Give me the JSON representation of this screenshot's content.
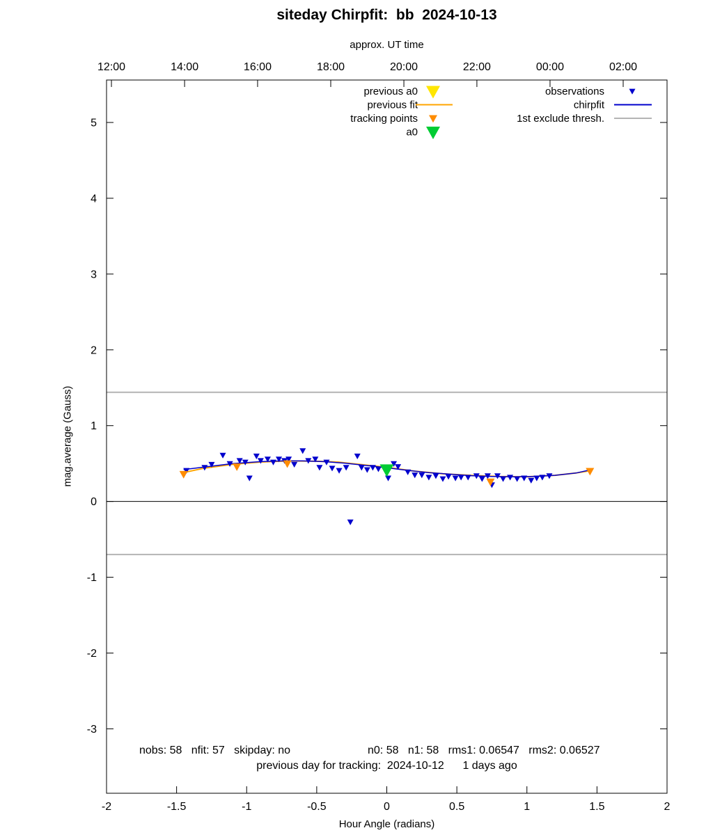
{
  "chart_data": {
    "type": "scatter",
    "title": "siteday Chirpfit:  bb  2024-10-13",
    "x2label": "approx. UT time",
    "xlabel": "Hour Angle (radians)",
    "ylabel": "mag.average (Gauss)",
    "xlim": [
      -2,
      2
    ],
    "ylim": [
      -3.85,
      5.56
    ],
    "grid": false,
    "legend_position": "top-inside",
    "x_ticks": [
      {
        "x": -2,
        "label": "-2"
      },
      {
        "x": -1.5,
        "label": "-1.5"
      },
      {
        "x": -1,
        "label": "-1"
      },
      {
        "x": -0.5,
        "label": "-0.5"
      },
      {
        "x": 0,
        "label": "0"
      },
      {
        "x": 0.5,
        "label": "0.5"
      },
      {
        "x": 1,
        "label": "1"
      },
      {
        "x": 1.5,
        "label": "1.5"
      },
      {
        "x": 2,
        "label": "2"
      }
    ],
    "y_ticks": [
      {
        "y": -3,
        "label": "-3"
      },
      {
        "y": -2,
        "label": "-2"
      },
      {
        "y": -1,
        "label": "-1"
      },
      {
        "y": 0,
        "label": "0"
      },
      {
        "y": 1,
        "label": "1"
      },
      {
        "y": 2,
        "label": "2"
      },
      {
        "y": 3,
        "label": "3"
      },
      {
        "y": 4,
        "label": "4"
      },
      {
        "y": 5,
        "label": "5"
      }
    ],
    "x2_ticks": [
      {
        "x": -1.965,
        "label": "12:00"
      },
      {
        "x": -1.443,
        "label": "14:00"
      },
      {
        "x": -0.922,
        "label": "16:00"
      },
      {
        "x": -0.4,
        "label": "18:00"
      },
      {
        "x": 0.122,
        "label": "20:00"
      },
      {
        "x": 0.643,
        "label": "22:00"
      },
      {
        "x": 1.165,
        "label": "00:00"
      },
      {
        "x": 1.687,
        "label": "02:00"
      }
    ],
    "hlines": [
      {
        "name": "exclude-threshold-upper",
        "y": 1.44,
        "color": "#b4b4b4",
        "width": 2
      },
      {
        "name": "exclude-threshold-lower",
        "y": -0.7,
        "color": "#b4b4b4",
        "width": 2
      },
      {
        "name": "zero-line",
        "y": 0,
        "color": "#000000",
        "width": 1
      }
    ],
    "series": [
      {
        "name": "previous fit",
        "type": "line",
        "color": "#ffa500",
        "width": 2,
        "points": [
          [
            -1.45,
            0.38
          ],
          [
            -1.3,
            0.44
          ],
          [
            -1.1,
            0.49
          ],
          [
            -0.9,
            0.52
          ],
          [
            -0.7,
            0.535
          ],
          [
            -0.5,
            0.53
          ],
          [
            -0.35,
            0.52
          ],
          [
            -0.2,
            0.49
          ],
          [
            0.0,
            0.45
          ],
          [
            0.2,
            0.4
          ],
          [
            0.4,
            0.365
          ],
          [
            0.6,
            0.345
          ],
          [
            0.8,
            0.33
          ],
          [
            1.0,
            0.325
          ],
          [
            1.2,
            0.345
          ],
          [
            1.35,
            0.375
          ],
          [
            1.45,
            0.405
          ]
        ]
      },
      {
        "name": "chirpfit",
        "type": "line",
        "color": "#0000cd",
        "width": 1.5,
        "points": [
          [
            -1.45,
            0.42
          ],
          [
            -1.3,
            0.455
          ],
          [
            -1.1,
            0.5
          ],
          [
            -0.9,
            0.525
          ],
          [
            -0.75,
            0.535
          ],
          [
            -0.6,
            0.535
          ],
          [
            -0.45,
            0.525
          ],
          [
            -0.3,
            0.505
          ],
          [
            -0.15,
            0.475
          ],
          [
            0.0,
            0.445
          ],
          [
            0.15,
            0.41
          ],
          [
            0.3,
            0.38
          ],
          [
            0.45,
            0.36
          ],
          [
            0.6,
            0.34
          ],
          [
            0.75,
            0.33
          ],
          [
            0.9,
            0.325
          ],
          [
            1.05,
            0.33
          ],
          [
            1.2,
            0.345
          ],
          [
            1.35,
            0.375
          ],
          [
            1.45,
            0.415
          ]
        ]
      },
      {
        "name": "observations",
        "type": "scatter",
        "marker": "triangle-down",
        "color": "#0000cd",
        "marker_size": 4.5,
        "points": [
          [
            -1.43,
            0.41
          ],
          [
            -1.3,
            0.45
          ],
          [
            -1.25,
            0.49
          ],
          [
            -1.17,
            0.61
          ],
          [
            -1.12,
            0.5
          ],
          [
            -1.05,
            0.54
          ],
          [
            -1.01,
            0.52
          ],
          [
            -0.98,
            0.31
          ],
          [
            -0.93,
            0.6
          ],
          [
            -0.9,
            0.54
          ],
          [
            -0.85,
            0.56
          ],
          [
            -0.81,
            0.52
          ],
          [
            -0.77,
            0.56
          ],
          [
            -0.73,
            0.54
          ],
          [
            -0.7,
            0.56
          ],
          [
            -0.66,
            0.49
          ],
          [
            -0.6,
            0.67
          ],
          [
            -0.56,
            0.54
          ],
          [
            -0.51,
            0.56
          ],
          [
            -0.48,
            0.45
          ],
          [
            -0.43,
            0.52
          ],
          [
            -0.39,
            0.44
          ],
          [
            -0.34,
            0.41
          ],
          [
            -0.29,
            0.45
          ],
          [
            -0.26,
            -0.27
          ],
          [
            -0.21,
            0.6
          ],
          [
            -0.18,
            0.45
          ],
          [
            -0.14,
            0.42
          ],
          [
            -0.1,
            0.45
          ],
          [
            -0.06,
            0.43
          ],
          [
            -0.02,
            0.44
          ],
          [
            0.01,
            0.31
          ],
          [
            0.05,
            0.5
          ],
          [
            0.08,
            0.46
          ],
          [
            0.15,
            0.39
          ],
          [
            0.2,
            0.35
          ],
          [
            0.25,
            0.35
          ],
          [
            0.3,
            0.32
          ],
          [
            0.35,
            0.34
          ],
          [
            0.4,
            0.3
          ],
          [
            0.44,
            0.33
          ],
          [
            0.49,
            0.31
          ],
          [
            0.53,
            0.32
          ],
          [
            0.58,
            0.32
          ],
          [
            0.64,
            0.34
          ],
          [
            0.68,
            0.3
          ],
          [
            0.72,
            0.34
          ],
          [
            0.75,
            0.22
          ],
          [
            0.79,
            0.34
          ],
          [
            0.83,
            0.3
          ],
          [
            0.88,
            0.32
          ],
          [
            0.93,
            0.3
          ],
          [
            0.98,
            0.31
          ],
          [
            1.03,
            0.28
          ],
          [
            1.07,
            0.31
          ],
          [
            1.11,
            0.32
          ],
          [
            1.16,
            0.34
          ],
          [
            1.45,
            0.41
          ]
        ]
      },
      {
        "name": "tracking points",
        "type": "scatter",
        "marker": "triangle-down",
        "color": "#ff8c00",
        "marker_size": 6,
        "points": [
          [
            -1.45,
            0.36
          ],
          [
            -1.07,
            0.46
          ],
          [
            -0.71,
            0.5
          ],
          [
            0.74,
            0.26
          ],
          [
            1.45,
            0.4
          ]
        ]
      },
      {
        "name": "a0",
        "type": "scatter",
        "marker": "triangle-down",
        "color": "#00cc33",
        "marker_size": 10,
        "points": [
          [
            0.0,
            0.42
          ]
        ]
      }
    ],
    "legend": {
      "columns": [
        {
          "entries": [
            {
              "label": "previous a0",
              "marker": "triangle-down",
              "color": "#ffe600",
              "size": 10
            },
            {
              "label": "previous fit",
              "marker": "line",
              "color": "#ffa500"
            },
            {
              "label": "tracking points",
              "marker": "triangle-down",
              "color": "#ff8c00",
              "size": 6
            },
            {
              "label": "a0",
              "marker": "triangle-down",
              "color": "#00cc33",
              "size": 10
            }
          ]
        },
        {
          "entries": [
            {
              "label": "observations",
              "marker": "triangle-down",
              "color": "#0000cd",
              "size": 4.5
            },
            {
              "label": "chirpfit",
              "marker": "line",
              "color": "#0000cd"
            },
            {
              "label": "1st exclude thresh.",
              "marker": "line",
              "color": "#b4b4b4"
            }
          ]
        }
      ]
    },
    "stats": {
      "line1_left": "nobs: 58   nfit: 57   skipday: no",
      "line1_right": "n0: 58   n1: 58   rms1: 0.06547   rms2: 0.06527",
      "line2": "previous day for tracking:  2024-10-12      1 days ago"
    }
  },
  "colors": {
    "observations": "#0000cd",
    "chirpfit": "#0000cd",
    "previous_fit": "#ffa500",
    "tracking_points": "#ff8c00",
    "previous_a0": "#ffe600",
    "a0": "#00cc33",
    "exclude_threshold": "#b4b4b4",
    "axis": "#000000",
    "background": "#ffffff"
  }
}
